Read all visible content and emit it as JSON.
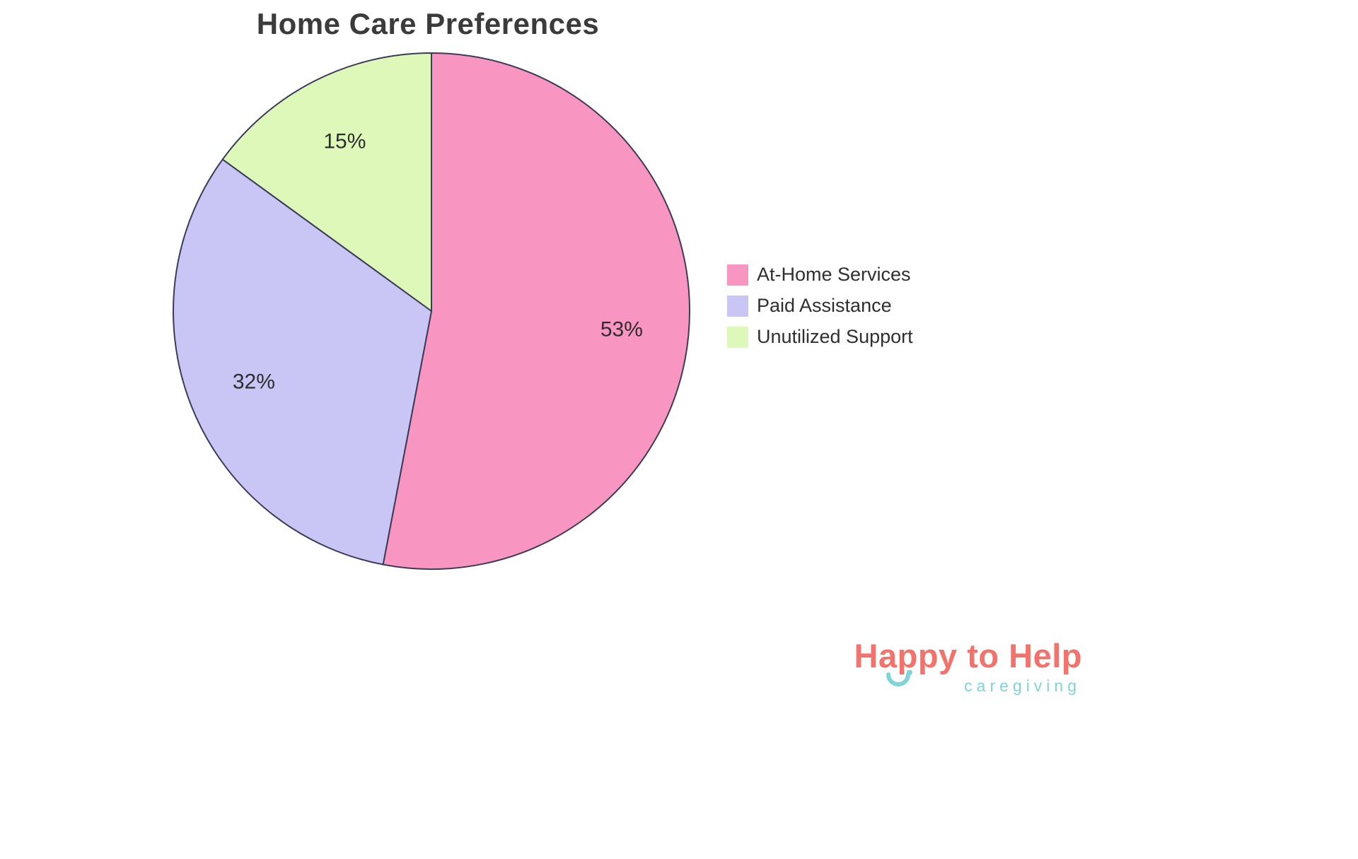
{
  "title": "Home Care Preferences",
  "chart_data": {
    "type": "pie",
    "title": "Home Care Preferences",
    "labels": [
      "At-Home Services",
      "Paid Assistance",
      "Unutilized Support"
    ],
    "values": [
      53,
      32,
      15
    ],
    "percent_labels": [
      "53%",
      "32%",
      "15%"
    ],
    "colors": [
      "#F895C1",
      "#C9C5F4",
      "#DDF8B9"
    ],
    "stroke_color": "#3B3B58",
    "start_angle_deg": 0,
    "direction": "clockwise",
    "legend_position": "right"
  },
  "legend": {
    "items": [
      {
        "label": "At-Home Services"
      },
      {
        "label": "Paid Assistance"
      },
      {
        "label": "Unutilized Support"
      }
    ]
  },
  "branding": {
    "name": "Happy to Help",
    "tagline": "caregiving",
    "name_color": "#F3726B",
    "tagline_color": "#7FD4D6"
  }
}
